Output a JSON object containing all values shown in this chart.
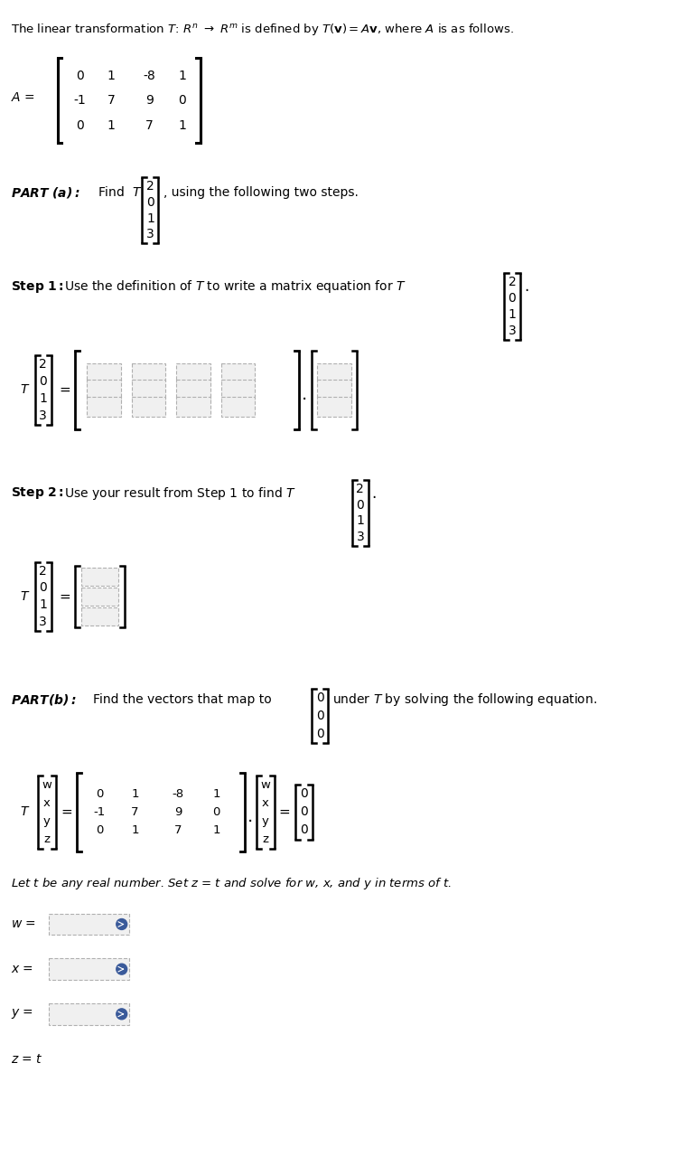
{
  "bg_color": "#ffffff",
  "matrix_A": [
    [
      "0",
      "1",
      "-8",
      "1"
    ],
    [
      "-1",
      "7",
      "9",
      "0"
    ],
    [
      "0",
      "1",
      "7",
      "1"
    ]
  ],
  "vector_2013": [
    "2",
    "0",
    "1",
    "3"
  ],
  "vec_wxyz": [
    "w",
    "x",
    "y",
    "z"
  ],
  "vec_000": [
    "0",
    "0",
    "0"
  ],
  "text_color": "#000000",
  "box_edge_color": "#b0b0b0",
  "box_face_color": "#f0f0f0",
  "icon_color": "#3a5a9a"
}
